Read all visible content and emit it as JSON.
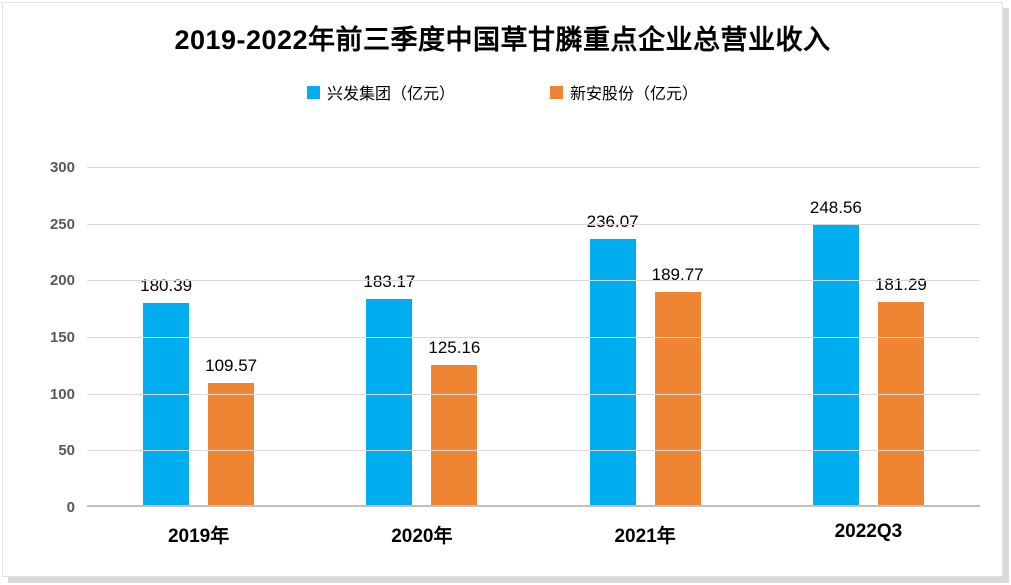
{
  "chart": {
    "title": "2019-2022年前三季度中国草甘膦重点企业总营业收入"
  },
  "chart_data": {
    "type": "bar",
    "title": "2019-2022年前三季度中国草甘膦重点企业总营业收入",
    "categories": [
      "2019年",
      "2020年",
      "2021年",
      "2022Q3"
    ],
    "series": [
      {
        "name": "兴发集团（亿元）",
        "color": "#00AEEF",
        "values": [
          180.39,
          183.17,
          236.07,
          248.56
        ]
      },
      {
        "name": "新安股份（亿元）",
        "color": "#EF8432",
        "values": [
          109.57,
          125.16,
          189.77,
          181.29
        ]
      }
    ],
    "xlabel": "",
    "ylabel": "",
    "ylim": [
      0,
      300
    ],
    "ytick_step": 50,
    "grid": true,
    "legend_position": "top",
    "value_labels_decimals": 2
  },
  "style_colors": {
    "gridline": "#d9d9d9",
    "axis_line": "#bfbfbf",
    "tick_text": "#595959",
    "shadow": "#d9d9d9"
  }
}
